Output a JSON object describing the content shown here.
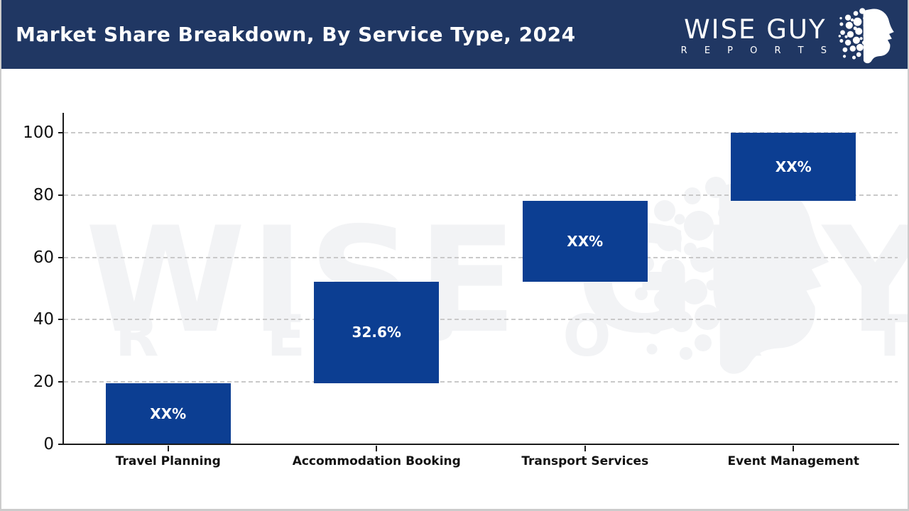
{
  "header": {
    "title": "Market Share Breakdown, By Service Type, 2024",
    "bg_color": "#203763",
    "logo": {
      "line1": "WISE GUY",
      "line2": "R E P O R T S",
      "icon": "dotted-head-profile"
    }
  },
  "watermark": {
    "line1": "WISE GUY",
    "line2": "R E P O R T S",
    "icon": "dotted-head-profile",
    "color": "#f2f3f5"
  },
  "chart_data": {
    "type": "bar",
    "subtype": "floating-waterfall",
    "title": "Market Share Breakdown, By Service Type, 2024",
    "xlabel": "",
    "ylabel": "",
    "categories": [
      "Travel Planning",
      "Accommodation Booking",
      "Transport Services",
      "Event Management"
    ],
    "segments": [
      {
        "category": "Travel Planning",
        "start": 0,
        "end": 19.6,
        "label": "XX%"
      },
      {
        "category": "Accommodation Booking",
        "start": 19.6,
        "end": 52.2,
        "label": "32.6%"
      },
      {
        "category": "Transport Services",
        "start": 52.2,
        "end": 78.1,
        "label": "XX%"
      },
      {
        "category": "Event Management",
        "start": 78.1,
        "end": 100,
        "label": "XX%"
      }
    ],
    "yticks": [
      0,
      20,
      40,
      60,
      80,
      100
    ],
    "ylim": [
      0,
      106
    ],
    "bar_color": "#0c3e92",
    "grid": "horizontal-dashed",
    "gridline_color": "#c9c9c9",
    "legend": "none"
  }
}
